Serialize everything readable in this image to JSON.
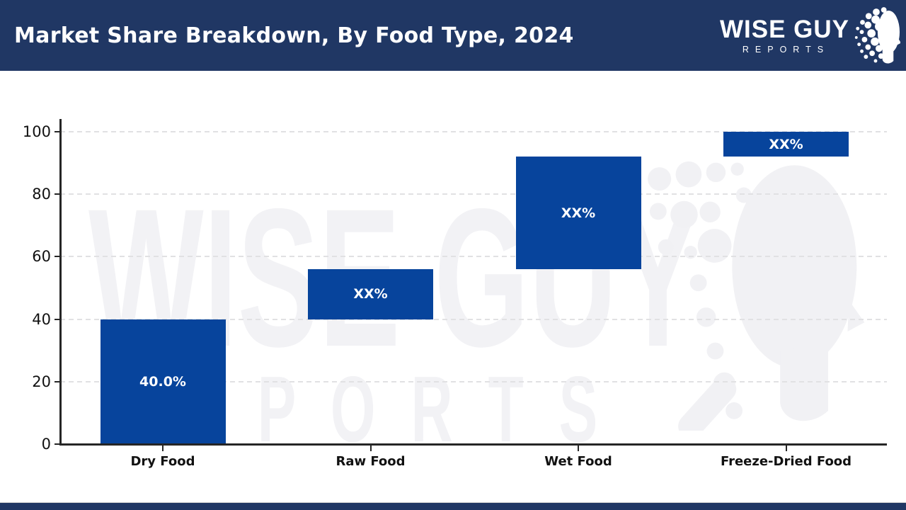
{
  "header": {
    "title": "Market Share Breakdown, By Food Type, 2024",
    "logo": {
      "line1": "WISE GUY",
      "line2": "REPORTS",
      "head_icon": "dotted-head-profile"
    },
    "background_color": "#203764"
  },
  "watermark": {
    "line1": "WISE GUY",
    "line2": "R E P O R T S",
    "head_icon": "dotted-head-profile"
  },
  "chart_data": {
    "type": "bar",
    "subtype": "waterfall",
    "title": "Market Share Breakdown, By Food Type, 2024",
    "categories": [
      "Dry Food",
      "Raw Food",
      "Wet Food",
      "Freeze-Dried Food"
    ],
    "segments": [
      {
        "category": "Dry Food",
        "start": 0,
        "end": 40,
        "label": "40.0%"
      },
      {
        "category": "Raw Food",
        "start": 40,
        "end": 56,
        "label": "XX%"
      },
      {
        "category": "Wet Food",
        "start": 56,
        "end": 92,
        "label": "XX%"
      },
      {
        "category": "Freeze-Dried Food",
        "start": 92,
        "end": 100,
        "label": "XX%"
      }
    ],
    "ylim": [
      0,
      100
    ],
    "yticks": [
      0,
      20,
      40,
      60,
      80,
      100
    ],
    "grid": "horizontal-dashed",
    "legend": "none",
    "bar_color": "#07449c",
    "bar_label_color": "#ffffff",
    "axis_color": "#262626",
    "gridline_color": "#e1e1e3"
  }
}
